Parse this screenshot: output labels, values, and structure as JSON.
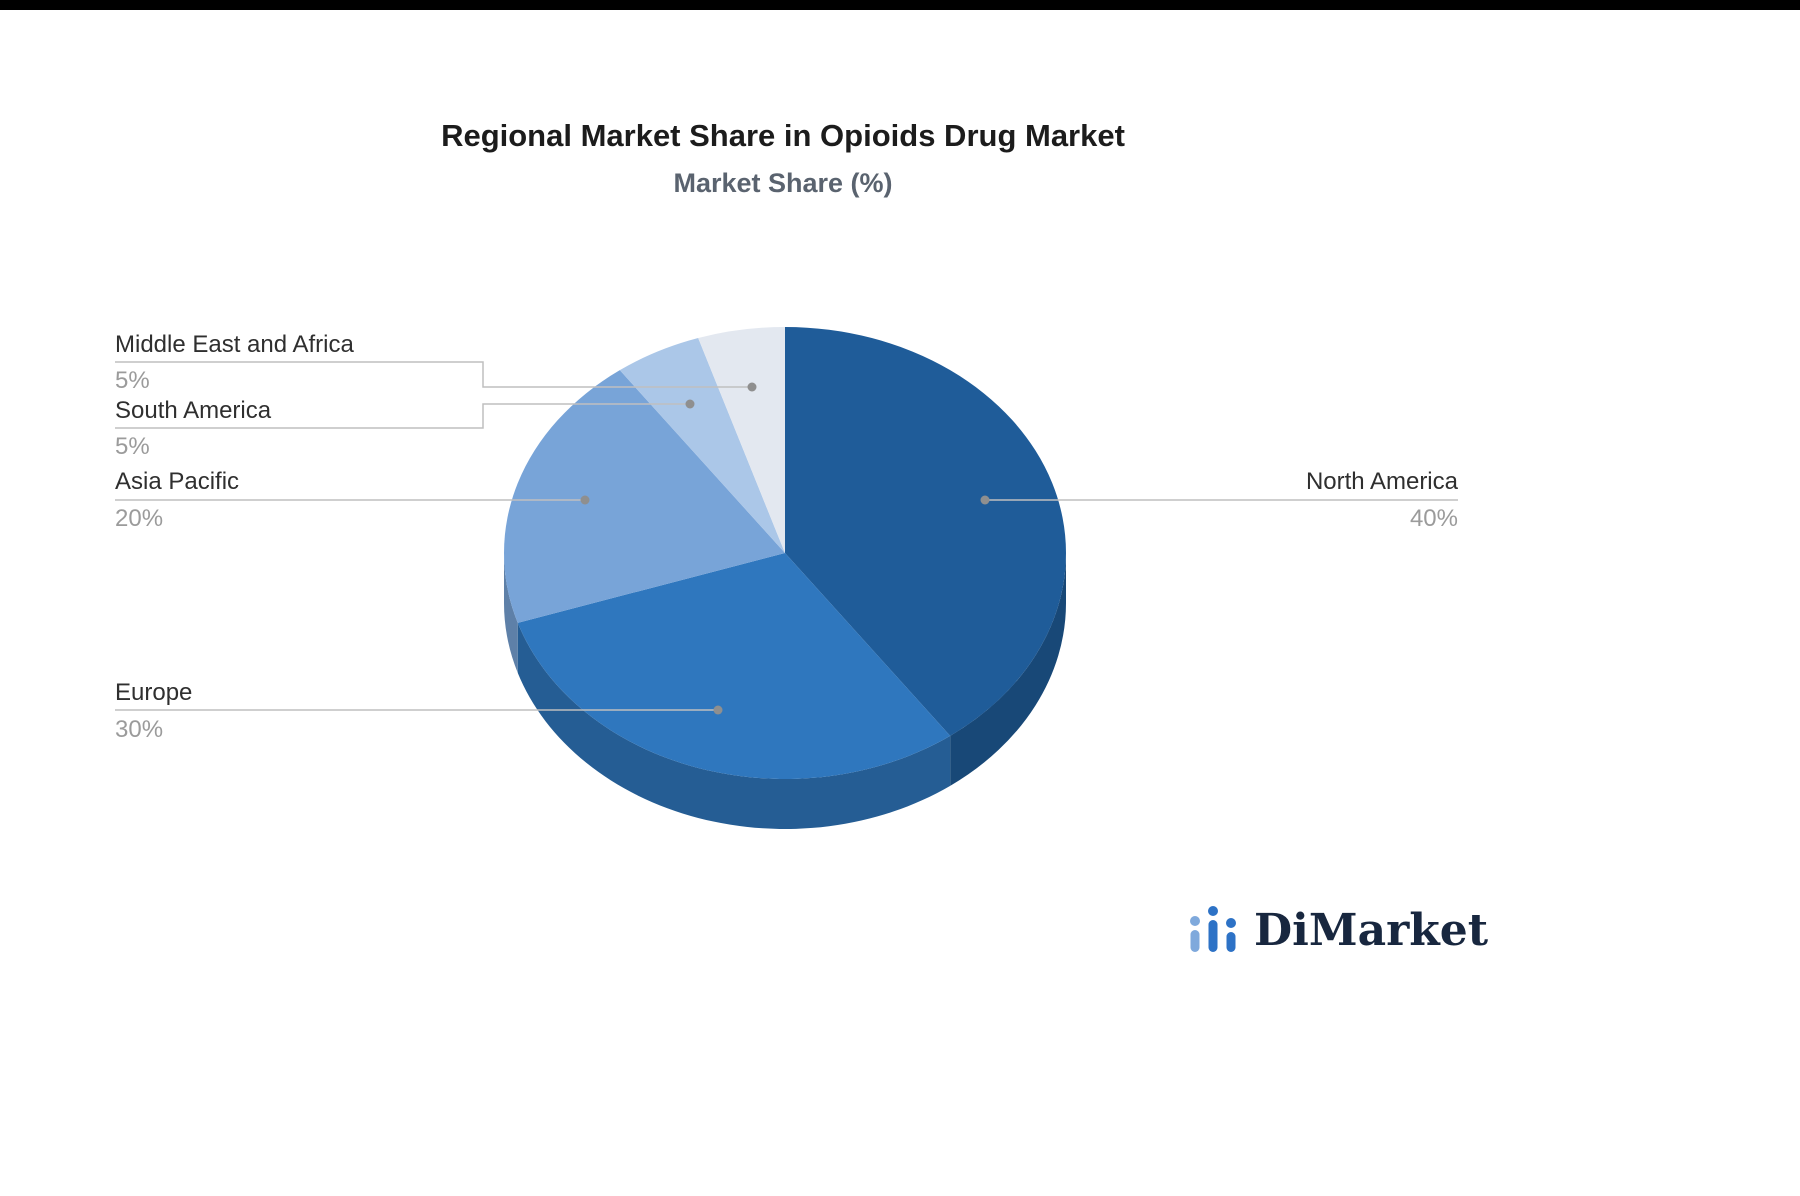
{
  "chart_data": {
    "type": "pie",
    "title": "Regional Market Share in Opioids Drug Market",
    "subtitle": "Market Share (%)",
    "unit": "%",
    "style": "3d",
    "direction": "clockwise",
    "start_angle_deg": -90,
    "legend_position": "callout-labels",
    "categories": [
      "North America",
      "Europe",
      "Asia Pacific",
      "South America",
      "Middle East and Africa"
    ],
    "values": [
      40,
      30,
      20,
      5,
      5
    ],
    "slices": [
      {
        "label": "North America",
        "value": 40,
        "display": "40%",
        "color": "#1F5C99"
      },
      {
        "label": "Europe",
        "value": 30,
        "display": "30%",
        "color": "#2F77BE"
      },
      {
        "label": "Asia Pacific",
        "value": 20,
        "display": "20%",
        "color": "#78A4D8"
      },
      {
        "label": "South America",
        "value": 5,
        "display": "5%",
        "color": "#ABC7E8"
      },
      {
        "label": "Middle East and Africa",
        "value": 5,
        "display": "5%",
        "color": "#E3E8F0"
      }
    ]
  },
  "branding": {
    "logo_text": "DiMarket",
    "logo_color": "#18273f",
    "icon_name": "bar-chart-icon",
    "icon_color": "#2D72C6",
    "icon_color_light": "#7FA9DC"
  },
  "colors": {
    "leader_line": "#BFBFBF",
    "leader_dot": "#8F8F8F",
    "title_text": "#1c1c1c",
    "subtitle_text": "#5a636f",
    "label_text": "#2f2f2f",
    "value_text": "#9b9b9b",
    "top_border": "#000000",
    "background": "#ffffff"
  }
}
